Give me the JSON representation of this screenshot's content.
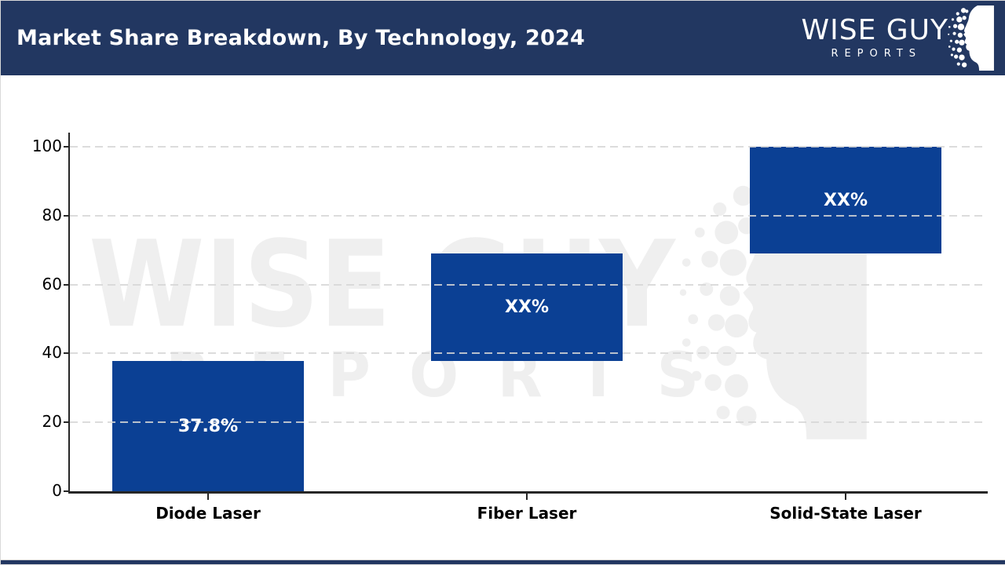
{
  "header": {
    "title": "Market Share Breakdown, By Technology, 2024",
    "bg_color": "#223761",
    "logo": {
      "line1": "WISE GUY",
      "line2": "REPORTS"
    }
  },
  "watermark": {
    "line1": "WISE GUY",
    "line2": "REPORTS"
  },
  "footer": {
    "bg_color": "#223761"
  },
  "chart_data": {
    "type": "bar",
    "subtype": "waterfall-stacked-segments",
    "title": "Market Share Breakdown, By Technology, 2024",
    "xlabel": "",
    "ylabel": "",
    "categories": [
      "Diode Laser",
      "Fiber Laser",
      "Solid-State Laser"
    ],
    "segments": [
      {
        "category": "Diode Laser",
        "start": 0,
        "end": 37.8,
        "label": "37.8%"
      },
      {
        "category": "Fiber Laser",
        "start": 37.8,
        "end": 69.0,
        "label": "XX%"
      },
      {
        "category": "Solid-State Laser",
        "start": 69.0,
        "end": 100.0,
        "label": "XX%"
      }
    ],
    "y_ticks": [
      0,
      20,
      40,
      60,
      80,
      100
    ],
    "ylim": [
      0,
      105
    ],
    "grid": "horizontal-dashed",
    "gridline_color": "#d6d6d6",
    "bar_color": "#0b4094",
    "bar_label_color": "#ffffff",
    "axis_color": "#262626",
    "legend": "none"
  }
}
